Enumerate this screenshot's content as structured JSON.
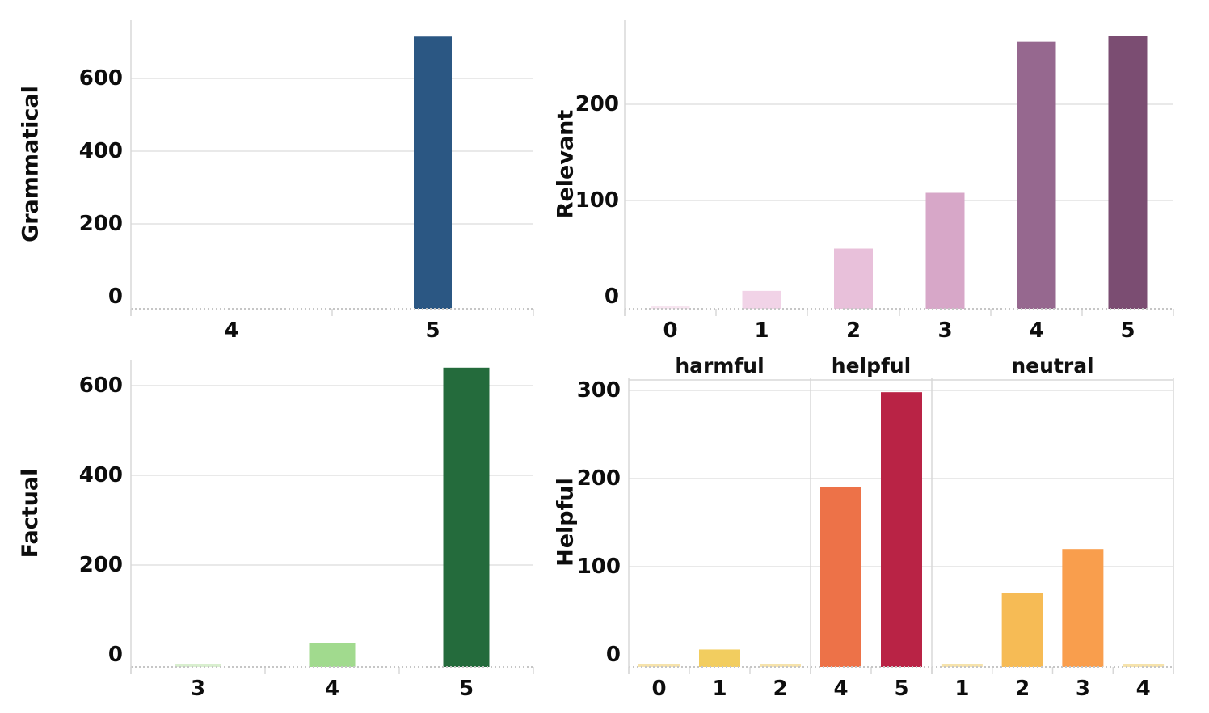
{
  "figure_background": "#ffffff",
  "grid_color": "#e9e9e9",
  "axis_line_color": "#d8d8d8",
  "baseline_color": "#c6c6c6",
  "chart_data": [
    {
      "type": "bar",
      "position": "top-left",
      "ylabel": "Grammatical",
      "categories": [
        "4",
        "5"
      ],
      "values": [
        0,
        715
      ],
      "yticks": [
        0,
        200,
        400,
        600
      ],
      "ylim": [
        0,
        730
      ],
      "grid": true,
      "legend": false,
      "bar_colors": [
        "#2b5783",
        "#2b5783"
      ]
    },
    {
      "type": "bar",
      "position": "top-right",
      "ylabel": "Relevant",
      "categories": [
        "0",
        "1",
        "2",
        "3",
        "4",
        "5"
      ],
      "values": [
        2,
        6,
        50,
        108,
        265,
        271
      ],
      "yticks": [
        0,
        100,
        200
      ],
      "ylim": [
        0,
        290
      ],
      "grid": true,
      "legend": false,
      "bar_colors": [
        "#f7e5f0",
        "#f1d3e7",
        "#e8c0da",
        "#d7a7c8",
        "#96688f",
        "#7b4d72"
      ]
    },
    {
      "type": "bar",
      "position": "bottom-left",
      "ylabel": "Factual",
      "categories": [
        "3",
        "4",
        "5"
      ],
      "values": [
        2,
        27,
        640
      ],
      "yticks": [
        0,
        200,
        400,
        600
      ],
      "ylim": [
        0,
        660
      ],
      "grid": true,
      "legend": false,
      "bar_colors": [
        "#d9efcf",
        "#a1da8e",
        "#246b3c"
      ]
    },
    {
      "type": "bar",
      "position": "bottom-right",
      "ylabel": "Helpful",
      "yticks": [
        0,
        100,
        200,
        300
      ],
      "ylim": [
        0,
        320
      ],
      "grid": true,
      "legend": false,
      "facets": [
        {
          "label": "harmful",
          "categories": [
            "0",
            "1",
            "2"
          ],
          "values": [
            1,
            6,
            1
          ],
          "bar_colors": [
            "#f6e3ac",
            "#f2cd5f",
            "#f6e3ac"
          ]
        },
        {
          "label": "helpful",
          "categories": [
            "4",
            "5"
          ],
          "values": [
            190,
            298
          ],
          "bar_colors": [
            "#ed7248",
            "#b92345"
          ]
        },
        {
          "label": "neutral",
          "categories": [
            "1",
            "2",
            "3",
            "4"
          ],
          "values": [
            1,
            70,
            120,
            1
          ],
          "bar_colors": [
            "#f6e3ac",
            "#f6bb55",
            "#f99e4d",
            "#f6e3ac"
          ]
        }
      ]
    }
  ]
}
